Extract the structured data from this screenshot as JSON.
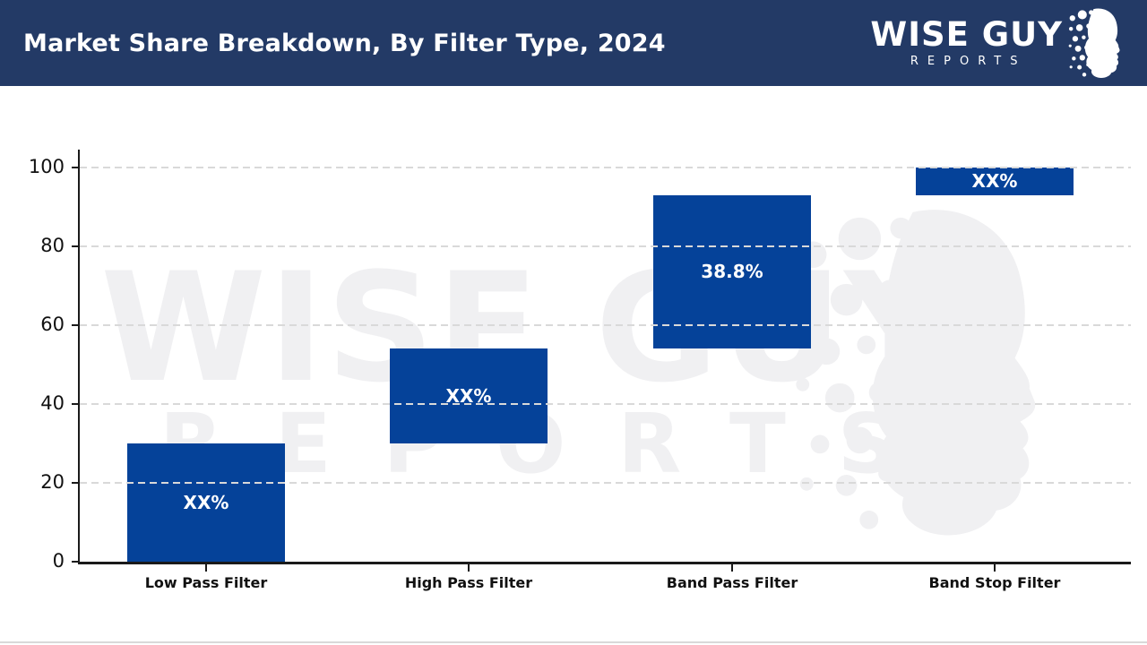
{
  "header": {
    "title": "Market Share Breakdown, By Filter Type, 2024",
    "logo_primary": "WISE GUY",
    "logo_secondary": "REPORTS",
    "background_color": "#233a66"
  },
  "watermark": {
    "line1": "WISE GUY",
    "line2": "REPORTS",
    "color": "#f0f0f2"
  },
  "chart_data": {
    "type": "bar",
    "variant": "waterfall",
    "title": "Market Share Breakdown, By Filter Type, 2024",
    "categories": [
      "Low Pass Filter",
      "High Pass Filter",
      "Band Pass Filter",
      "Band Stop Filter"
    ],
    "segments": [
      {
        "category": "Low Pass Filter",
        "start": 0,
        "end": 30,
        "label": "XX%"
      },
      {
        "category": "High Pass Filter",
        "start": 30,
        "end": 54.2,
        "label": "XX%"
      },
      {
        "category": "Band Pass Filter",
        "start": 54.2,
        "end": 93,
        "label": "38.8%"
      },
      {
        "category": "Band Stop Filter",
        "start": 93,
        "end": 100,
        "label": "XX%"
      }
    ],
    "ylabel": "",
    "xlabel": "",
    "ylim": [
      0,
      105
    ],
    "yticks": [
      0,
      20,
      40,
      60,
      80,
      100
    ],
    "grid": {
      "horizontal": true,
      "style": "dashed",
      "color": "#d9d9d9",
      "drawn_above_bars": true
    },
    "legend": "none",
    "bar_color": "#054299",
    "bar_label_color": "#ffffff",
    "axis_color": "#1a1a1a"
  }
}
